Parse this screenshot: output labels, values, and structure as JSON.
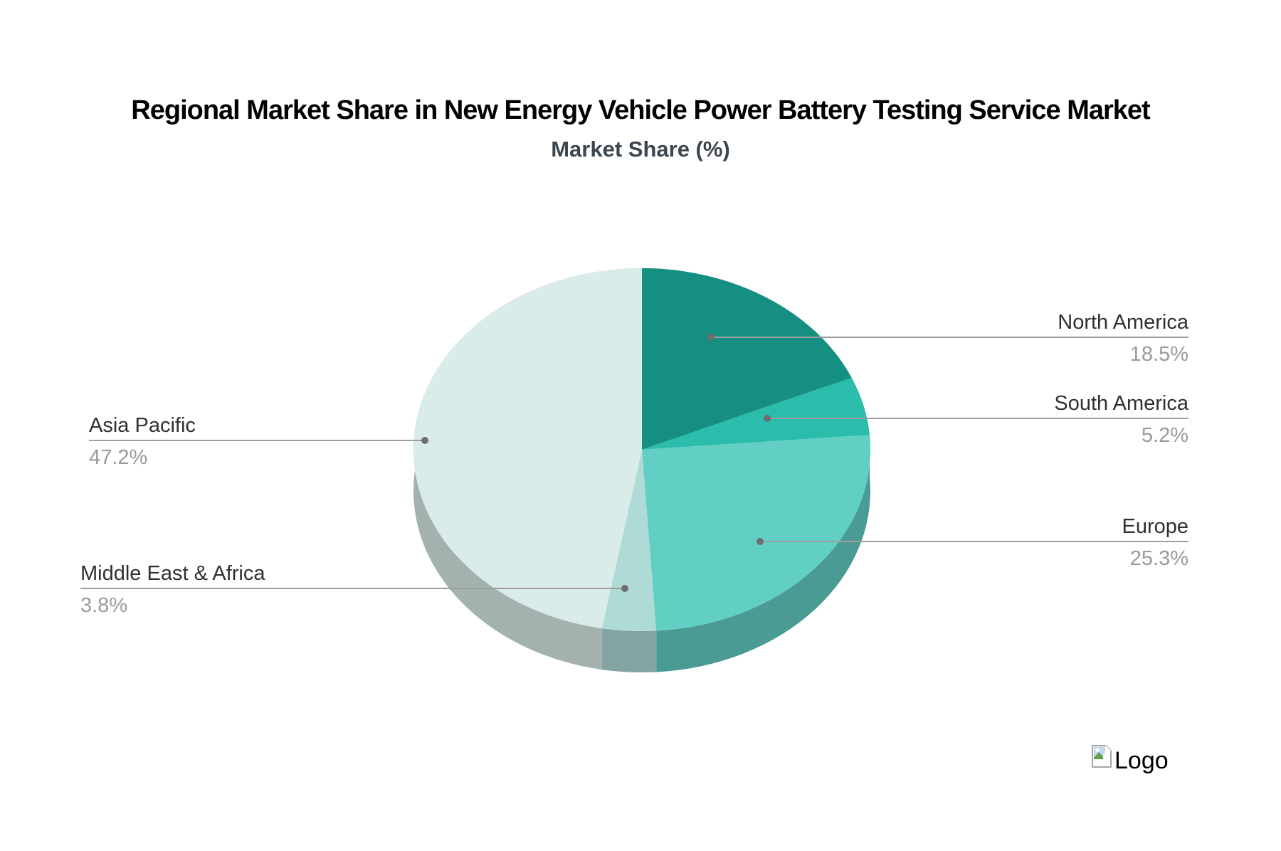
{
  "header": {
    "title": "Regional Market Share in New Energy Vehicle Power Battery Testing Service Market",
    "subtitle": "Market Share (%)"
  },
  "chart_data": {
    "type": "pie",
    "style_3d": true,
    "title": "Regional Market Share in New Energy Vehicle Power Battery Testing Service Market",
    "subtitle": "Market Share (%)",
    "unit": "%",
    "start_angle_deg": 0,
    "direction": "clockwise",
    "legend": "none",
    "label_layout": "outside-with-leader-lines",
    "slices": [
      {
        "label": "North America",
        "value": 18.5,
        "display": "18.5%",
        "color": "#168f83"
      },
      {
        "label": "South America",
        "value": 5.2,
        "display": "5.2%",
        "color": "#2bbcab"
      },
      {
        "label": "Europe",
        "value": 25.3,
        "display": "25.3%",
        "color": "#62cfc4"
      },
      {
        "label": "Middle East & Africa",
        "value": 3.8,
        "display": "3.8%",
        "color": "#aedbd5"
      },
      {
        "label": "Asia Pacific",
        "value": 47.2,
        "display": "47.2%",
        "color": "#d9ece9"
      }
    ]
  },
  "colors": {
    "background": "#ffffff",
    "leader_line": "#9e9e9e",
    "connector_dot": "#6e6e6e",
    "label_text": "#303030",
    "value_text": "#9a9a9a",
    "title_text": "#000000",
    "subtitle_text": "#3c4650"
  },
  "logo": {
    "text": "Logo"
  }
}
